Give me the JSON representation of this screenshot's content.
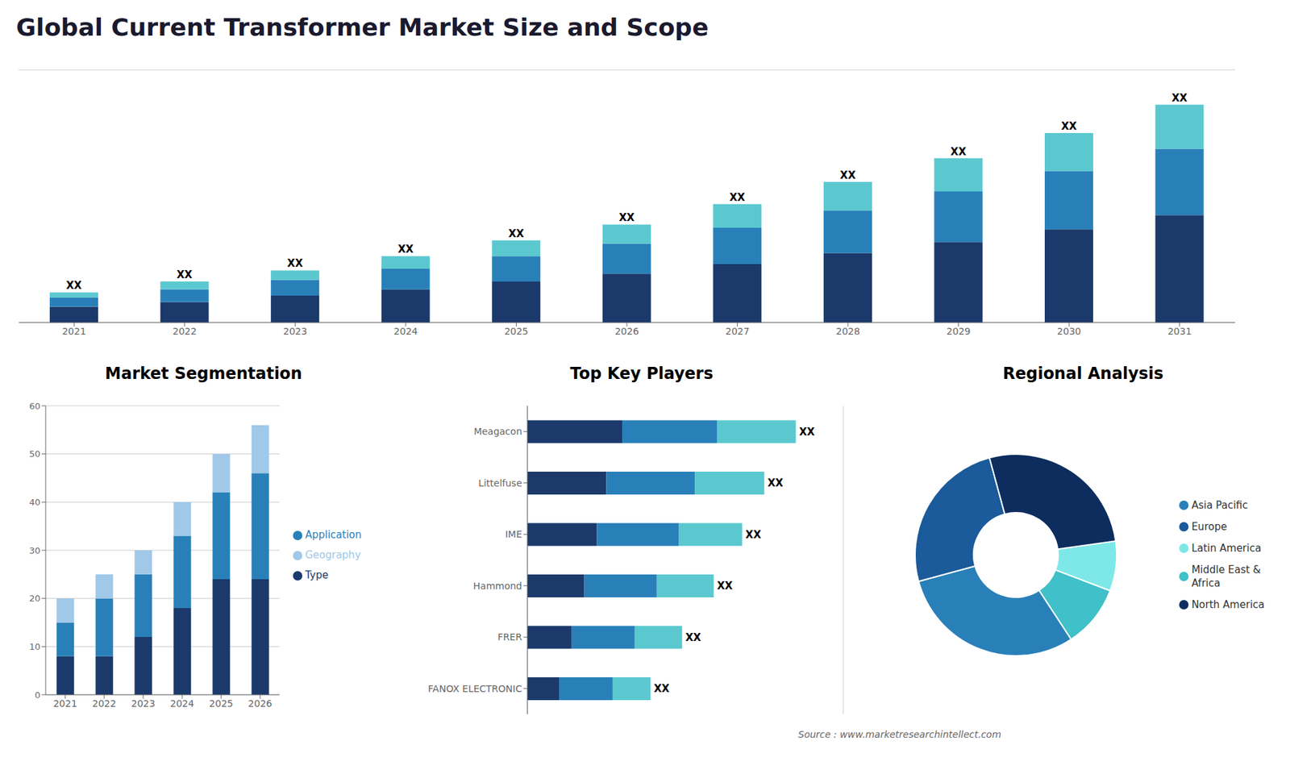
{
  "title": "Global Current Transformer Market Size and Scope",
  "annotations": [
    "Source : www.marketresearchintellect.com"
  ],
  "chart_data": [
    {
      "type": "bar",
      "stacked": true,
      "categories": [
        "2021",
        "2022",
        "2023",
        "2024",
        "2025",
        "2026",
        "2027",
        "2028",
        "2029",
        "2030",
        "2031"
      ],
      "series": [
        {
          "color": "#1b3a6b",
          "values": [
            1.0,
            1.3,
            1.7,
            2.1,
            2.6,
            3.1,
            3.7,
            4.4,
            5.1,
            5.9,
            6.8
          ]
        },
        {
          "color": "#2980b9",
          "values": [
            0.6,
            0.8,
            1.0,
            1.3,
            1.6,
            1.9,
            2.3,
            2.7,
            3.2,
            3.7,
            4.2
          ]
        },
        {
          "color": "#5bc8d0",
          "values": [
            0.3,
            0.5,
            0.6,
            0.8,
            1.0,
            1.2,
            1.5,
            1.8,
            2.1,
            2.4,
            2.8
          ],
          "value_labels": [
            "XX",
            "XX",
            "XX",
            "XX",
            "XX",
            "XX",
            "XX",
            "XX",
            "XX",
            "XX",
            "XX"
          ]
        }
      ],
      "ylim": [
        0,
        16
      ],
      "yticks": [
        0,
        2,
        4,
        6,
        8,
        10,
        12,
        14,
        16
      ],
      "grid": true,
      "tick_labels": "x"
    },
    {
      "type": "bar",
      "title": "Market Segmentation",
      "stacked": true,
      "categories": [
        "2021",
        "2022",
        "2023",
        "2024",
        "2025",
        "2026"
      ],
      "series": [
        {
          "name": "Type",
          "color": "#1b3a6b",
          "values": [
            8,
            8,
            12,
            18,
            24,
            24
          ]
        },
        {
          "name": "Application",
          "color": "#2980b9",
          "values": [
            7,
            12,
            13,
            15,
            18,
            22
          ]
        },
        {
          "name": "Geography",
          "color": "#a0c8e8",
          "values": [
            5,
            5,
            5,
            7,
            8,
            10
          ]
        }
      ],
      "ylim": [
        0,
        60
      ],
      "yticks": [
        0,
        10,
        20,
        30,
        40,
        50,
        60
      ],
      "grid": true,
      "legend": "right"
    },
    {
      "type": "bar",
      "title": "Top Key Players",
      "orientation": "horizontal",
      "stacked": true,
      "categories": [
        "Meagacon",
        "Littelfuse",
        "IME",
        "Hammond",
        "FRER",
        "FANOX ELECTRONIC"
      ],
      "series": [
        {
          "color": "#1b3a6b",
          "values": [
            0.3,
            0.25,
            0.22,
            0.18,
            0.14,
            0.1
          ]
        },
        {
          "color": "#2980b9",
          "values": [
            0.3,
            0.28,
            0.26,
            0.23,
            0.2,
            0.17
          ]
        },
        {
          "color": "#5bc8d0",
          "values": [
            0.25,
            0.22,
            0.2,
            0.18,
            0.15,
            0.12
          ],
          "value_labels": [
            "XX",
            "XX",
            "XX",
            "XX",
            "XX",
            "XX"
          ]
        }
      ],
      "xlim": [
        0,
        1
      ],
      "xticks": [
        0,
        0.2,
        0.4,
        0.6,
        0.8,
        1
      ],
      "grid": true,
      "tick_labels": "y"
    },
    {
      "type": "donut",
      "title": "Regional Analysis",
      "categories": [
        "Latin America",
        "Middle East &\nAfrica",
        "Asia Pacific",
        "Europe",
        "North America"
      ],
      "values": [
        0.08,
        0.1,
        0.3,
        0.25,
        0.27
      ],
      "colors": [
        "#7ee8e8",
        "#40c0c8",
        "#2980b9",
        "#1b5a9b",
        "#0d2d5e"
      ],
      "legend": "right"
    }
  ]
}
